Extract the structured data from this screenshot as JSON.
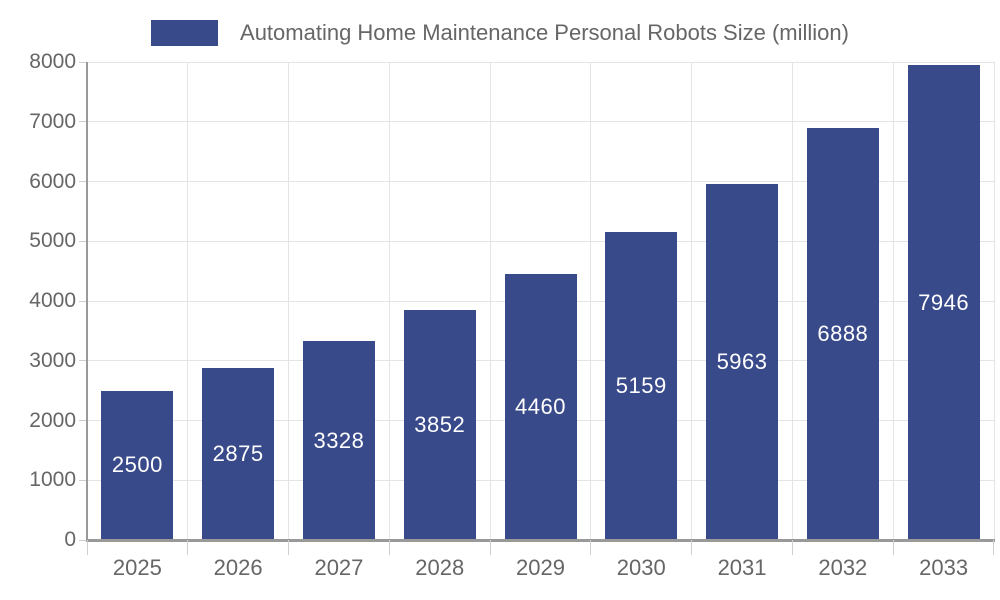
{
  "legend": {
    "label": "Automating Home Maintenance Personal Robots Size (million)",
    "swatch_color": "#394A8B"
  },
  "chart_data": {
    "type": "bar",
    "title": "",
    "xlabel": "",
    "ylabel": "",
    "categories": [
      "2025",
      "2026",
      "2027",
      "2028",
      "2029",
      "2030",
      "2031",
      "2032",
      "2033"
    ],
    "values": [
      2500,
      2875,
      3328,
      3852,
      4460,
      5159,
      5963,
      6888,
      7946
    ],
    "series_name": "Automating Home Maintenance Personal Robots Size (million)",
    "ylim": [
      0,
      8000
    ],
    "ytick_step": 1000,
    "ytick_labels": [
      "0",
      "1000",
      "2000",
      "3000",
      "4000",
      "5000",
      "6000",
      "7000",
      "8000"
    ],
    "grid": true,
    "legend_position": "top",
    "value_labels_shown": true,
    "colors": {
      "bar": "#394A8B",
      "value_label": "#FFFFFF",
      "gridline": "#E4E4E4",
      "axis_line": "#999999",
      "tick_mark": "#CFCFCF",
      "tick_label": "#666666",
      "legend_text": "#666666",
      "background": "#FFFFFF"
    }
  }
}
